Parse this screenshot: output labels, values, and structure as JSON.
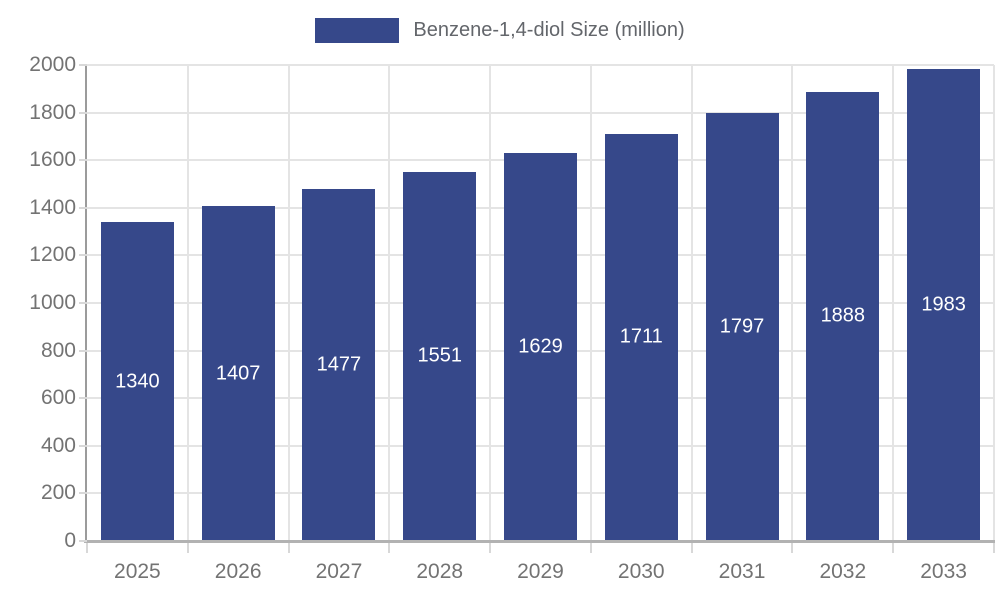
{
  "legend": {
    "label": "Benzene-1,4-diol Size (million)",
    "swatch_color": "#36488A"
  },
  "chart_data": {
    "type": "bar",
    "title": "Benzene-1,4-diol Size (million)",
    "categories": [
      "2025",
      "2026",
      "2027",
      "2028",
      "2029",
      "2030",
      "2031",
      "2032",
      "2033"
    ],
    "series": [
      {
        "name": "Benzene-1,4-diol Size (million)",
        "values": [
          1340,
          1407,
          1477,
          1551,
          1629,
          1711,
          1797,
          1888,
          1983
        ]
      }
    ],
    "xlabel": "",
    "ylabel": "",
    "ylim": [
      0,
      2000
    ],
    "ytick_step": 200,
    "yticks": [
      0,
      200,
      400,
      600,
      800,
      1000,
      1200,
      1400,
      1600,
      1800,
      2000
    ],
    "bar_color": "#36488A",
    "value_label_color": "#ffffff",
    "axis_text_color": "#737373",
    "grid": true,
    "legend_position": "top"
  }
}
